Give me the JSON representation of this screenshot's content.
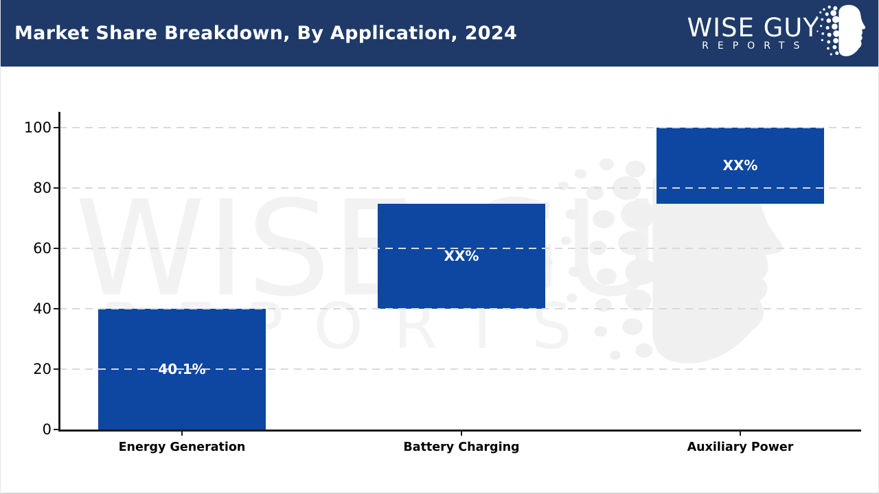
{
  "header": {
    "title": "Market Share Breakdown, By Application, 2024",
    "logo": {
      "line1": "WISE GUY",
      "line2": "REPORTS"
    }
  },
  "watermark": {
    "line1": "WISE GUY",
    "line2": "REPORTS"
  },
  "chart_data": {
    "type": "bar",
    "subtype": "waterfall",
    "title": "Market Share Breakdown, By Application, 2024",
    "categories": [
      "Energy Generation",
      "Battery Charging",
      "Auxiliary Power"
    ],
    "segments": [
      {
        "category": "Energy Generation",
        "start": 0,
        "end": 40.1,
        "label": "40.1%"
      },
      {
        "category": "Battery Charging",
        "start": 40.1,
        "end": 74.8,
        "label": "XX%"
      },
      {
        "category": "Auxiliary Power",
        "start": 74.8,
        "end": 100,
        "label": "XX%"
      }
    ],
    "ylim": [
      0,
      100
    ],
    "yticks": [
      0,
      20,
      40,
      60,
      80,
      100
    ],
    "xlabel": "",
    "ylabel": "",
    "legend": "none",
    "grid": "horizontal-dashed",
    "colors": {
      "bar": "#0d47a1",
      "bar_label": "#ffffff",
      "grid": "#d9d9d9",
      "axis": "#1a1a1a",
      "header_bg": "#1f3a68",
      "watermark": "#f2f2f2"
    }
  }
}
